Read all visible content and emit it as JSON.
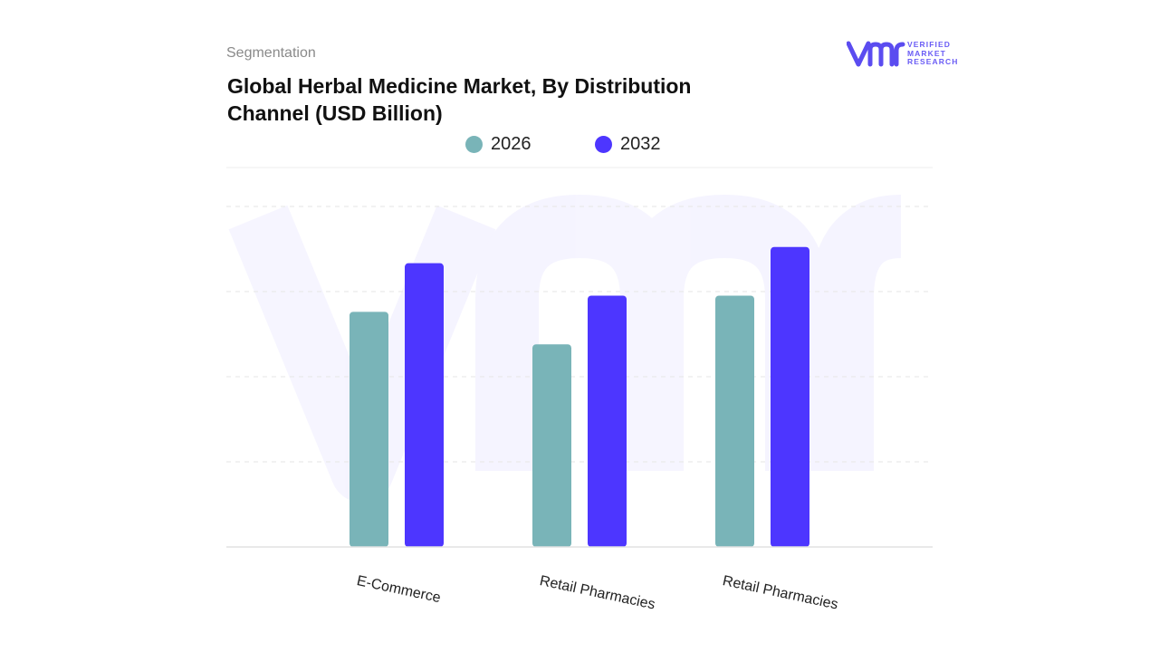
{
  "header": {
    "segment_label": "Segmentation",
    "title": "Global Herbal Medicine Market, By Distribution Channel (USD Billion)"
  },
  "logo": {
    "line1": "VERIFIED",
    "line2": "MARKET",
    "line3": "RESEARCH",
    "color": "#5b4cf0"
  },
  "chart_data": {
    "type": "bar",
    "title": "Global Herbal Medicine Market, By Distribution Channel (USD Billion)",
    "categories": [
      "E-Commerce",
      "Retail Pharmacies",
      "Retail Pharmacies"
    ],
    "series": [
      {
        "name": "2026",
        "values": [
          2.9,
          2.5,
          3.1
        ],
        "color": "#79b4b8"
      },
      {
        "name": "2032",
        "values": [
          3.5,
          3.1,
          3.7
        ],
        "color": "#4d36ff"
      }
    ],
    "ylim": [
      0,
      4.2
    ],
    "grid": true,
    "legend": "top-center",
    "xlabel": "",
    "ylabel": ""
  }
}
